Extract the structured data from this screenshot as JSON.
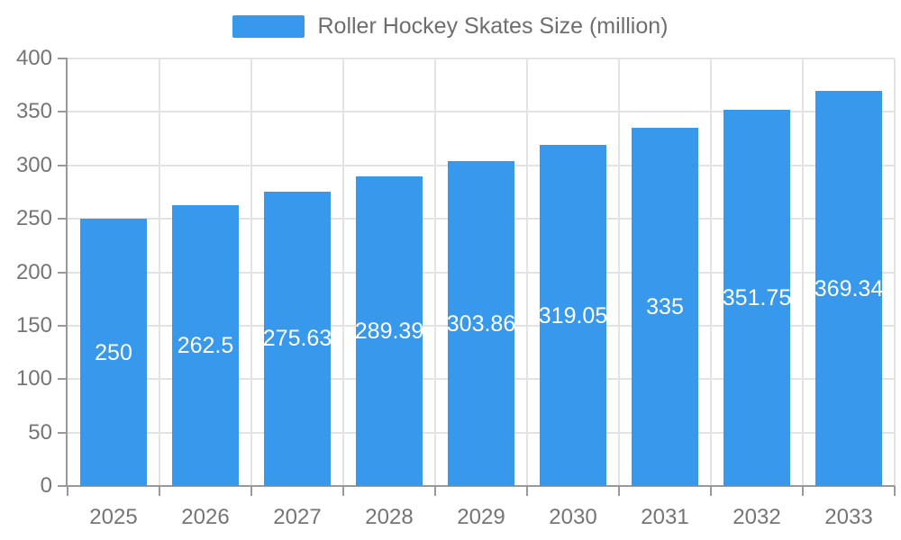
{
  "chart_data": {
    "type": "bar",
    "title": "",
    "categories": [
      "2025",
      "2026",
      "2027",
      "2028",
      "2029",
      "2030",
      "2031",
      "2032",
      "2033"
    ],
    "series": [
      {
        "name": "Roller Hockey Skates Size (million)",
        "values": [
          250,
          262.5,
          275.63,
          289.39,
          303.86,
          319.05,
          335,
          351.75,
          369.34
        ],
        "value_labels": [
          "250",
          "262.5",
          "275.63",
          "289.39",
          "303.86",
          "319.05",
          "335",
          "351.75",
          "369.34"
        ]
      }
    ],
    "xlabel": "",
    "ylabel": "",
    "ylim": [
      0,
      400
    ],
    "ytick_step": 50,
    "ytick_labels": [
      "0",
      "50",
      "100",
      "150",
      "200",
      "250",
      "300",
      "350",
      "400"
    ],
    "grid": true,
    "legend_position": "top-center",
    "bar_label_position": "inside-middle",
    "colors": {
      "bar": "#3898EC",
      "bar_label_text": "#FFFFFF",
      "axis_line": "#999999",
      "grid_line": "#E3E3E3",
      "tick_label_text": "#757575",
      "legend_text": "#6E6E6E",
      "background": "#FFFFFF"
    }
  }
}
